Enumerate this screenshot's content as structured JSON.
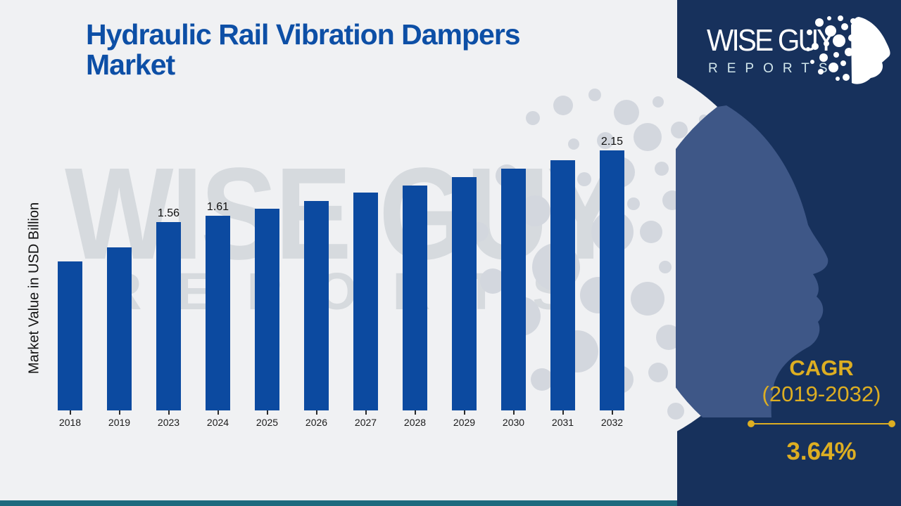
{
  "title": "Hydraulic Rail Vibration Dampers Market",
  "logo": {
    "line1": "WISE GUY",
    "line2": "REPORTS"
  },
  "watermark": {
    "line1": "WISE GUY",
    "line2": "REPORTS"
  },
  "cagr": {
    "label_line1": "CAGR",
    "label_line2": "(2019-2032)",
    "value": "3.64%"
  },
  "colors": {
    "background": "#f0f1f3",
    "bar": "#0c4aa0",
    "title": "#0d4fa6",
    "navy_panel": "#17315c",
    "gold": "#ddae22",
    "teal_strip": "#1e6a7e",
    "face_silhouette": "#3e5787",
    "watermark_gray": "#d6dade"
  },
  "chart_data": {
    "type": "bar",
    "title": "Hydraulic Rail Vibration Dampers Market",
    "categories": [
      "2018",
      "2019",
      "2023",
      "2024",
      "2025",
      "2026",
      "2027",
      "2028",
      "2029",
      "2030",
      "2031",
      "2032"
    ],
    "values": [
      1.23,
      1.35,
      1.56,
      1.61,
      1.67,
      1.73,
      1.8,
      1.86,
      1.93,
      2.0,
      2.07,
      2.15
    ],
    "bar_labels": [
      "",
      "",
      "1.56",
      "1.61",
      "",
      "",
      "",
      "",
      "",
      "",
      "",
      "2.15"
    ],
    "xlabel": "",
    "ylabel": "Market Value in USD Billion",
    "ylim": [
      0,
      2.6
    ],
    "grid": false,
    "legend": null
  }
}
